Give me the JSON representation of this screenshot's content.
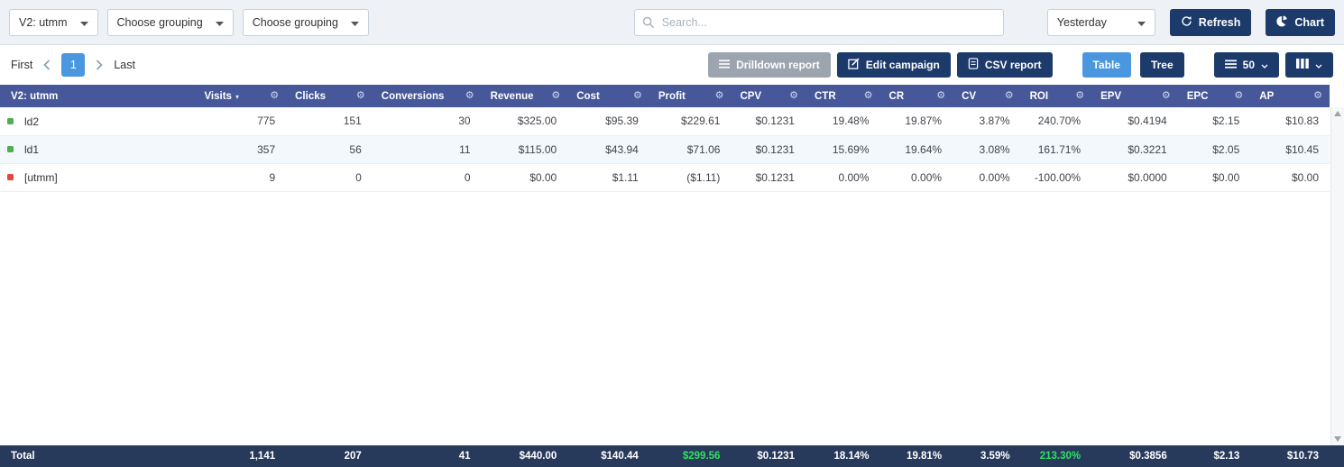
{
  "toolbar": {
    "campaign_filter": "V2: utmm",
    "grouping_1": "Choose grouping",
    "grouping_2": "Choose grouping",
    "search_placeholder": "Search...",
    "date_range": "Yesterday",
    "refresh": "Refresh",
    "chart": "Chart"
  },
  "pagination": {
    "first": "First",
    "current_page": "1",
    "last": "Last"
  },
  "actions": {
    "drilldown": "Drilldown report",
    "edit_campaign": "Edit campaign",
    "csv": "CSV report",
    "view_table": "Table",
    "view_tree": "Tree",
    "rows_per_page": "50"
  },
  "table": {
    "name_column": "V2: utmm",
    "columns": [
      {
        "label": "Visits",
        "sorted": true
      },
      {
        "label": "Clicks"
      },
      {
        "label": "Conversions"
      },
      {
        "label": "Revenue"
      },
      {
        "label": "Cost"
      },
      {
        "label": "Profit"
      },
      {
        "label": "CPV"
      },
      {
        "label": "CTR"
      },
      {
        "label": "CR"
      },
      {
        "label": "CV"
      },
      {
        "label": "ROI"
      },
      {
        "label": "EPV"
      },
      {
        "label": "EPC"
      },
      {
        "label": "AP"
      }
    ],
    "rows": [
      {
        "indicator": "green",
        "name": "ld2",
        "cells": [
          "775",
          "151",
          "30",
          "$325.00",
          "$95.39",
          "$229.61",
          "$0.1231",
          "19.48%",
          "19.87%",
          "3.87%",
          "240.70%",
          "$0.4194",
          "$2.15",
          "$10.83"
        ],
        "cell_colors": {
          "5": "pos",
          "10": "pos"
        }
      },
      {
        "indicator": "green",
        "name": "ld1",
        "cells": [
          "357",
          "56",
          "11",
          "$115.00",
          "$43.94",
          "$71.06",
          "$0.1231",
          "15.69%",
          "19.64%",
          "3.08%",
          "161.71%",
          "$0.3221",
          "$2.05",
          "$10.45"
        ],
        "cell_colors": {
          "5": "pos",
          "10": "pos"
        }
      },
      {
        "indicator": "red",
        "name": "[utmm]",
        "cells": [
          "9",
          "0",
          "0",
          "$0.00",
          "$1.11",
          "($1.11)",
          "$0.1231",
          "0.00%",
          "0.00%",
          "0.00%",
          "-100.00%",
          "$0.0000",
          "$0.00",
          "$0.00"
        ],
        "cell_colors": {
          "5": "neg",
          "10": "neg"
        }
      }
    ],
    "total": {
      "label": "Total",
      "cells": [
        "1,141",
        "207",
        "41",
        "$440.00",
        "$140.44",
        "$299.56",
        "$0.1231",
        "18.14%",
        "19.81%",
        "3.59%",
        "213.30%",
        "$0.3856",
        "$2.13",
        "$10.73"
      ],
      "cell_colors": {
        "5": "pos",
        "10": "pos"
      }
    }
  },
  "colors": {
    "accent_blue": "#4a97e0",
    "navy_button": "#1c3a6a",
    "table_header_bg": "#47589a",
    "total_bar_bg": "#273a5c",
    "positive": "#27a74a",
    "negative": "#e8453c",
    "indicator_green": "#4caf50",
    "indicator_red": "#e8453c"
  }
}
